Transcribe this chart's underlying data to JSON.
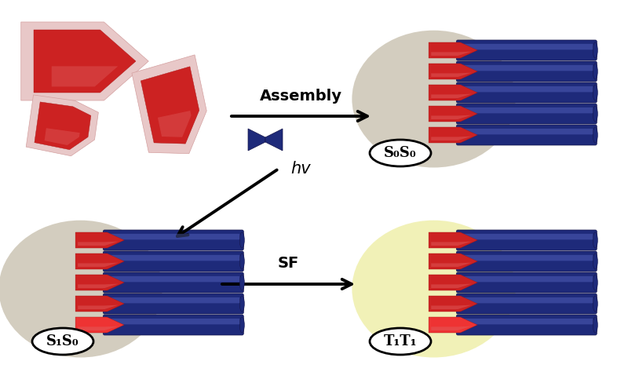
{
  "bg_color": "#ffffff",
  "red_dark": "#aa1515",
  "red_mid": "#cc2222",
  "red_bright": "#ee3333",
  "red_shadow_fill": "#e8c8c8",
  "red_shadow_edge": "#d4a0a0",
  "blue_dark": "#15154a",
  "blue_mid": "#1e2a7a",
  "blue_light": "#3040aa",
  "grey_aura": "#cfc8b8",
  "yellow_aura": "#f0f0b0",
  "arrow_color": "#111111",
  "assembly_label": "Assembly",
  "hv_label": "hv",
  "sf_label": "SF",
  "label_fontsize": 14,
  "oval_fontsize": 13
}
